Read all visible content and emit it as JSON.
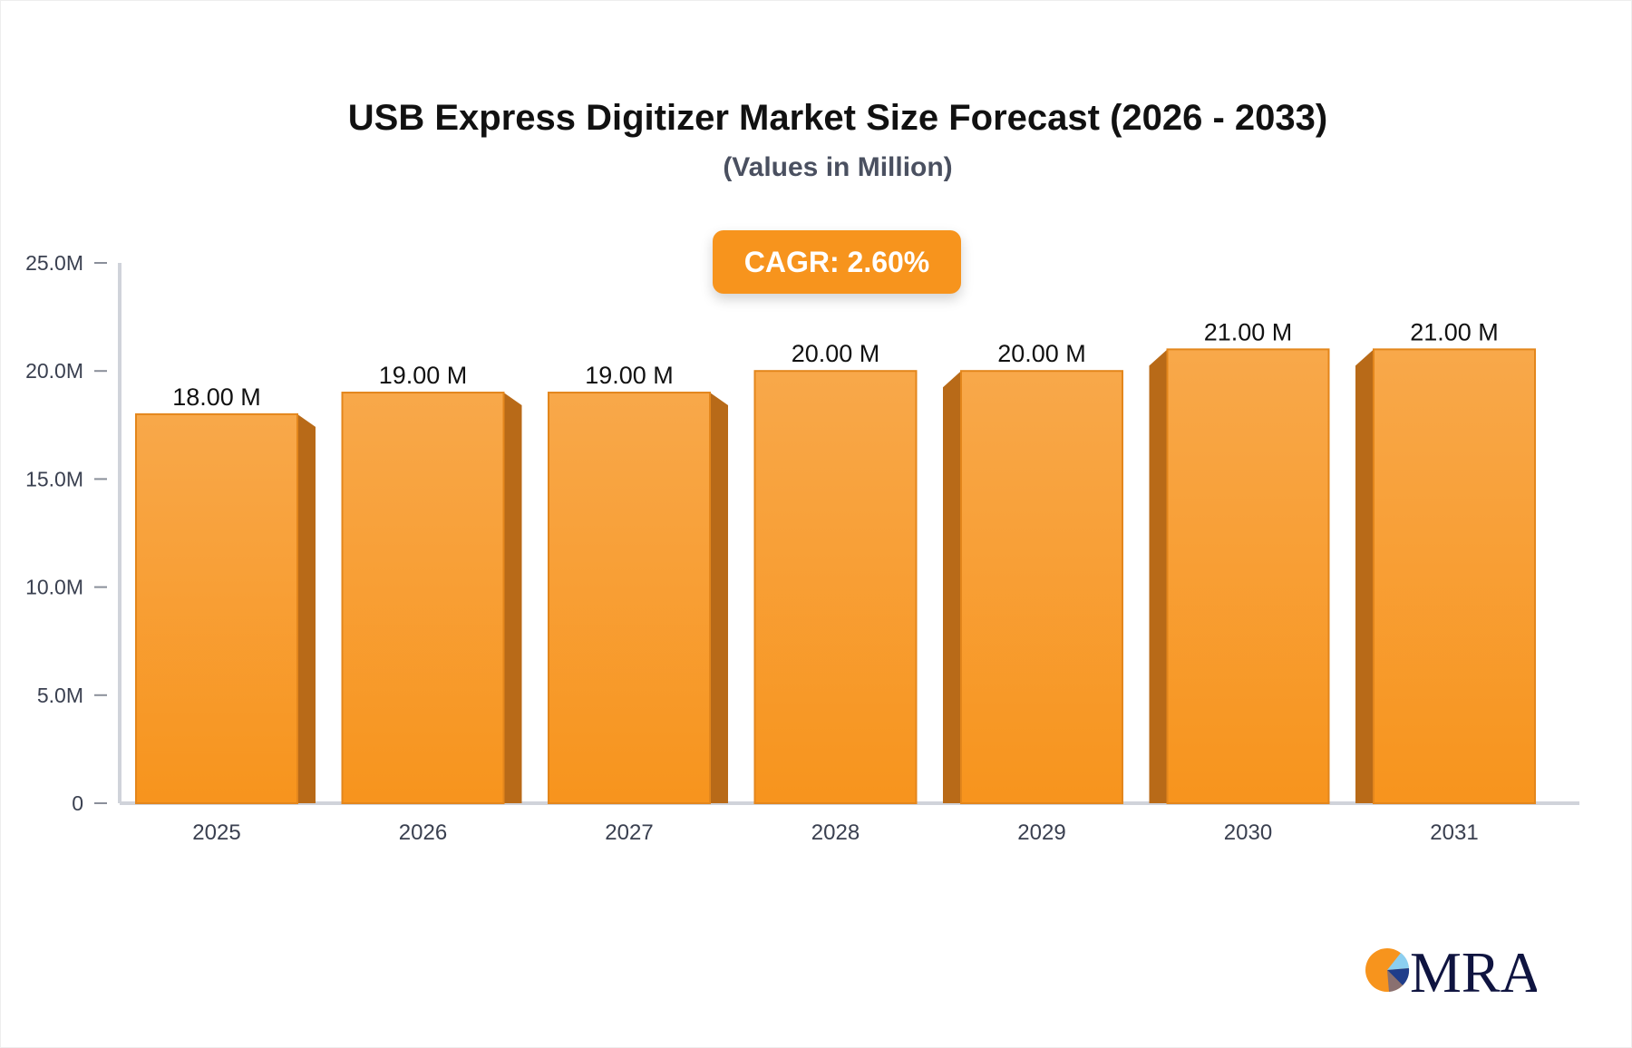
{
  "chart_data": {
    "type": "bar",
    "title": "USB Express Digitizer Market Size Forecast (2026 - 2033)",
    "subtitle": "(Values in Million)",
    "annotation": "CAGR: 2.60%",
    "categories": [
      "2025",
      "2026",
      "2027",
      "2028",
      "2029",
      "2030",
      "2031"
    ],
    "values": [
      18,
      19,
      19,
      20,
      20,
      21,
      21
    ],
    "data_labels": [
      "18.00 M",
      "19.00 M",
      "19.00 M",
      "20.00 M",
      "20.00 M",
      "21.00 M",
      "21.00 M"
    ],
    "yticks": [
      0,
      5,
      10,
      15,
      20,
      25
    ],
    "ytick_labels": [
      "0",
      "5.0M",
      "10.0M",
      "15.0M",
      "20.0M",
      "25.0M"
    ],
    "ylim": [
      0,
      25
    ],
    "xlabel": "",
    "ylabel": "",
    "grid": false,
    "colors": {
      "bar_top": "#f8a84a",
      "bar_bottom": "#f7941d",
      "bar_side": "#b86a18",
      "bar_edge": "#e3861c",
      "axis": "#d0d3da",
      "accent": "#f7941d"
    }
  },
  "logo": {
    "text": "MRA",
    "color": "#0f1440"
  }
}
